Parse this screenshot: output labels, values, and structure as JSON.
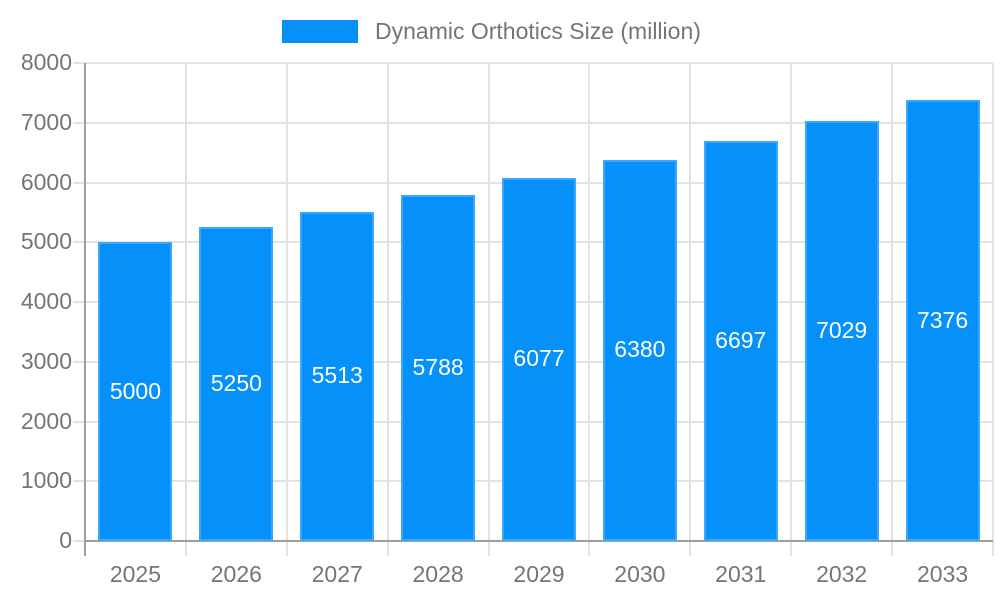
{
  "legend": {
    "label": "Dynamic Orthotics Size (million)"
  },
  "chart_data": {
    "type": "bar",
    "title": "Dynamic Orthotics Size (million)",
    "categories": [
      "2025",
      "2026",
      "2027",
      "2028",
      "2029",
      "2030",
      "2031",
      "2032",
      "2033"
    ],
    "series": [
      {
        "name": "Dynamic Orthotics Size (million)",
        "values": [
          5000,
          5250,
          5513,
          5788,
          6077,
          6380,
          6697,
          7029,
          7376
        ]
      }
    ],
    "bar_labels": [
      "5000",
      "5250",
      "5513",
      "5788",
      "6077",
      "6380",
      "6697",
      "7029",
      "7376"
    ],
    "xlabel": "",
    "ylabel": "",
    "ylim": [
      0,
      8000
    ],
    "ytick_step": 1000,
    "ytick_labels": [
      "0",
      "1000",
      "2000",
      "3000",
      "4000",
      "5000",
      "6000",
      "7000",
      "8000"
    ],
    "grid": true,
    "legend_position": "top-center",
    "colors": {
      "bar": "#0590fa",
      "bar_label": "#ffffff",
      "axis_text": "#757575",
      "gridline": "#e2e2e2",
      "axis_line": "#9e9e9e",
      "background": "#ffffff"
    }
  }
}
